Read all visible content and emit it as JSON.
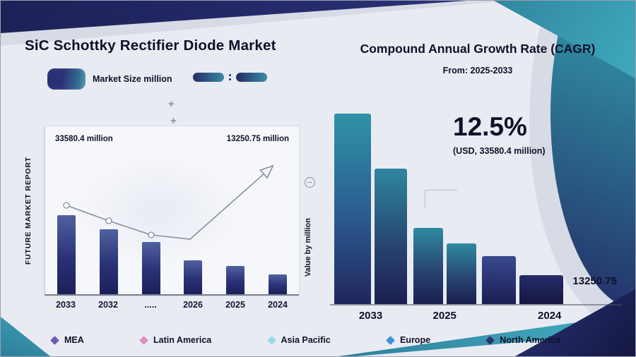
{
  "theme": {
    "navy": "#232a66",
    "teal": "#2e8fa5",
    "background": "#e9ebf2",
    "text": "#0f1128"
  },
  "decor": {
    "plus": "+"
  },
  "chart_data": [
    {
      "type": "bar",
      "name": "market-size-trend",
      "title": "SiC Schottky Rectifier Diode Market",
      "legend": "Market Size million",
      "side_label": "FUTURE MARKET REPORT",
      "annotation_left": "33580.4 million",
      "annotation_right": "13250.75 million",
      "categories": [
        "2033",
        "2032",
        ".....",
        "2026",
        "2025",
        "2024"
      ],
      "values": [
        100,
        82,
        66,
        43,
        36,
        25
      ],
      "units": "relative",
      "ylim": [
        0,
        100
      ],
      "grid": false,
      "trend": {
        "markers": [
          [
            30,
            112
          ],
          [
            90,
            134
          ],
          [
            150,
            154
          ]
        ],
        "path": [
          [
            205,
            160
          ]
        ],
        "arrow_to": [
          320,
          58
        ]
      }
    },
    {
      "type": "grouped-bar",
      "name": "cagr-bars",
      "title": "Compound Annual Growth Rate (CAGR)",
      "subtitle": "From: 2025-2033",
      "cagr": "12.5%",
      "cagr_note": "(USD, 33580.4 million)",
      "ylabel": "Value by million",
      "categories": [
        "2033",
        "2025",
        "2024"
      ],
      "series": [
        {
          "name": "primary",
          "values": [
            100,
            40,
            25
          ]
        },
        {
          "name": "secondary",
          "values": [
            71,
            32,
            15
          ]
        }
      ],
      "data_label": "13250.75",
      "units": "relative",
      "grid": false
    }
  ],
  "legend": {
    "items": [
      {
        "label": "MEA",
        "color": "#6f5bb5"
      },
      {
        "label": "Latin America",
        "color": "#d892c0"
      },
      {
        "label": "Asia Pacific",
        "color": "#9bd8ea"
      },
      {
        "label": "Europe",
        "color": "#3f8fd4"
      },
      {
        "label": "North America",
        "color": "#2a3272"
      }
    ]
  }
}
